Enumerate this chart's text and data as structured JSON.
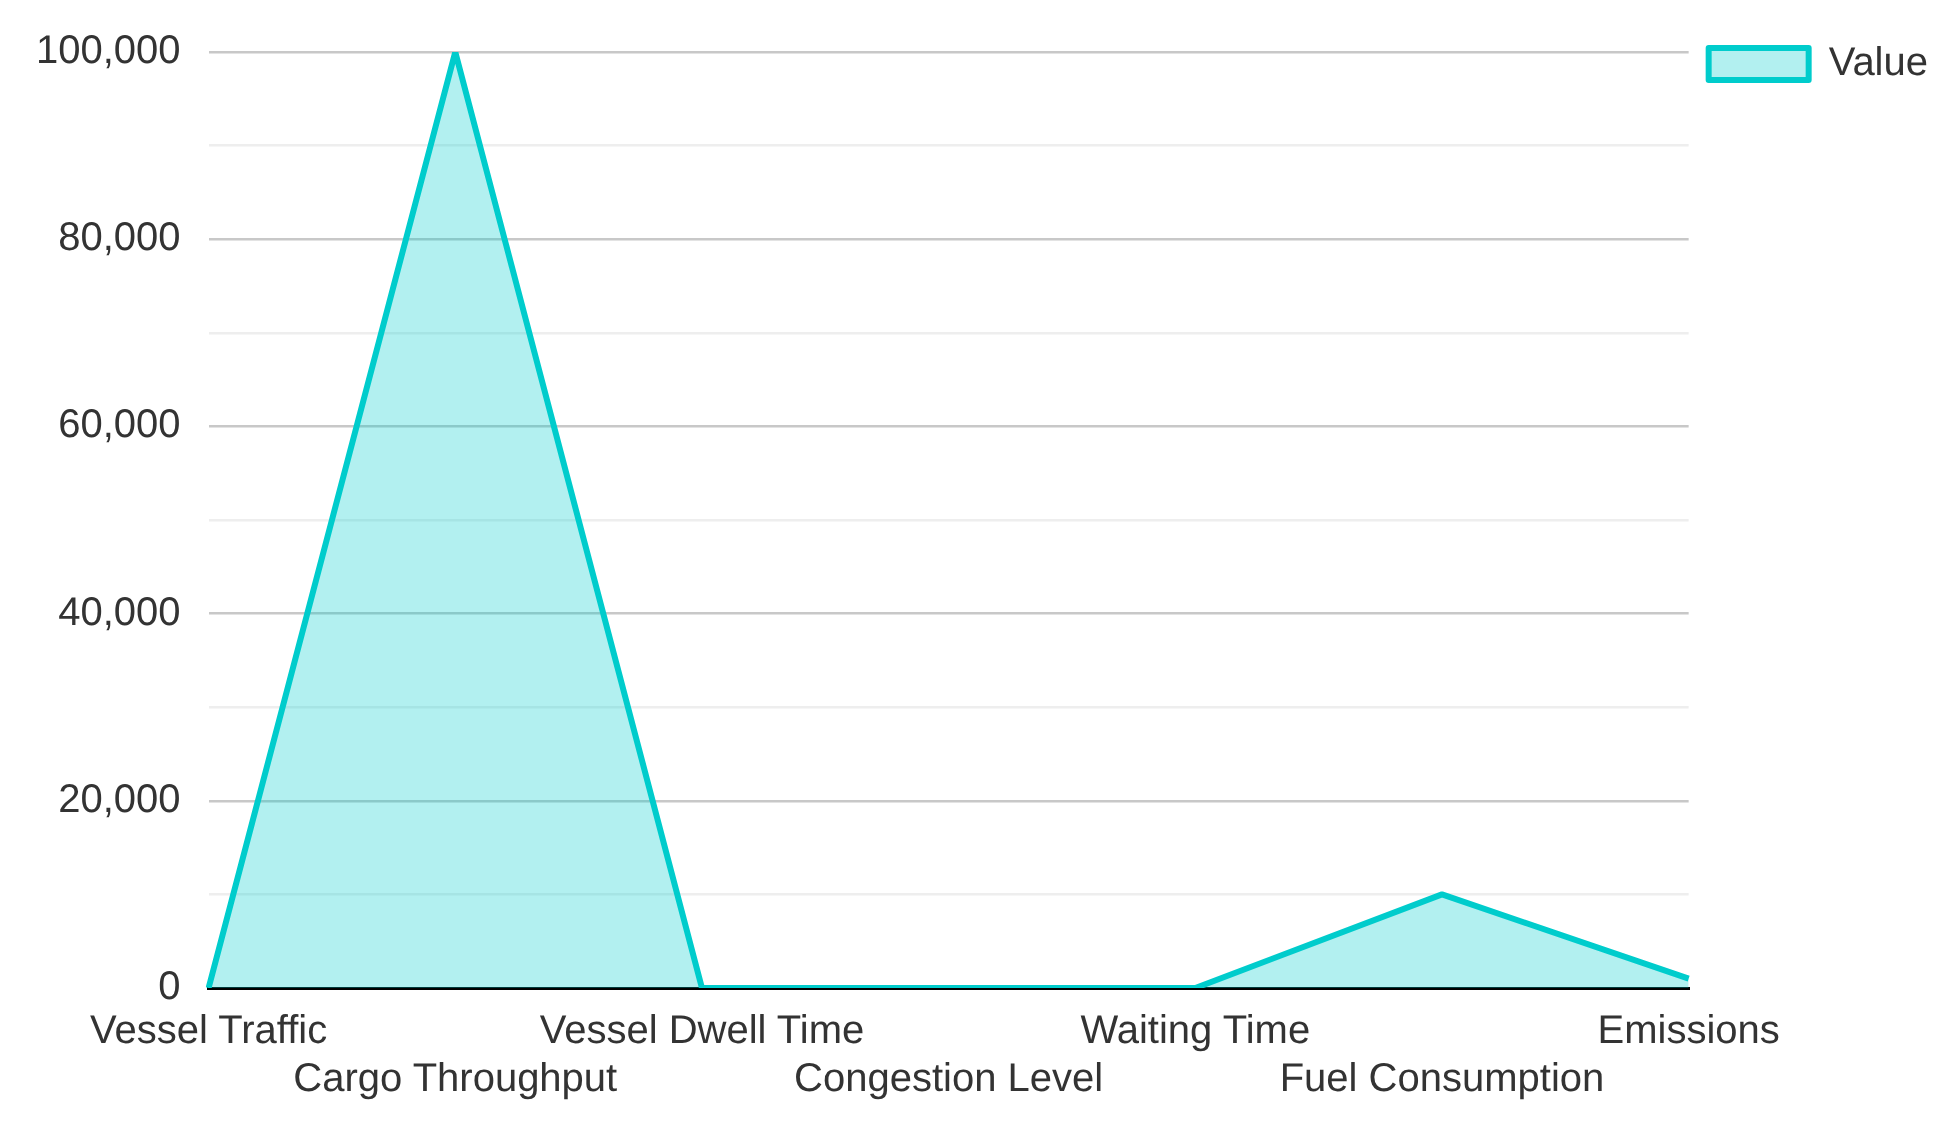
{
  "chart_data": {
    "type": "area",
    "categories": [
      "Vessel Traffic",
      "Cargo Throughput",
      "Vessel Dwell Time",
      "Congestion Level",
      "Waiting Time",
      "Fuel Consumption",
      "Emissions"
    ],
    "series": [
      {
        "name": "Value",
        "color": "#00cccc",
        "values": [
          0,
          100000,
          0,
          0,
          0,
          10000,
          1000
        ]
      }
    ],
    "ylim": [
      0,
      100000
    ],
    "yticks": [
      0,
      {
        "value": 10000,
        "label": null
      },
      {
        "value": 20000,
        "label": "20,000"
      },
      {
        "value": 30000,
        "label": null
      },
      {
        "value": 40000,
        "label": "40,000"
      },
      {
        "value": 50000,
        "label": null
      },
      {
        "value": 60000,
        "label": "60,000"
      },
      {
        "value": 70000,
        "label": null
      },
      {
        "value": 80000,
        "label": "80,000"
      },
      {
        "value": 90000,
        "label": null
      },
      {
        "value": 100000,
        "label": "100,000"
      }
    ],
    "grid": "y",
    "legend": "top right",
    "marker": "none",
    "line_style": "solid"
  }
}
